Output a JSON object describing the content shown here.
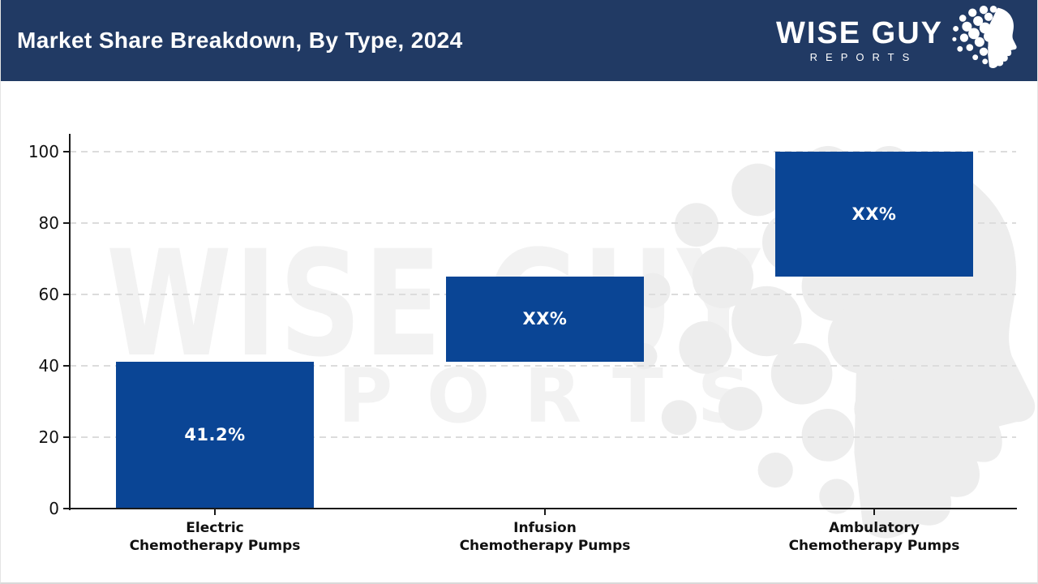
{
  "header": {
    "title": "Market Share Breakdown, By Type, 2024",
    "bg_color": "#213a64",
    "logo": {
      "line1": "WISE GUY",
      "line2": "REPORTS",
      "icon": "dotted-face-profile-icon"
    }
  },
  "watermark": {
    "line1": "WISE GUY",
    "line2": "REPORTS",
    "icon": "dotted-face-profile-icon"
  },
  "chart_data": {
    "type": "bar",
    "subtype": "floating-segment-waterfall",
    "title": "Market Share Breakdown, By Type, 2024",
    "categories": [
      [
        "Electric",
        "Chemotherapy Pumps"
      ],
      [
        "Infusion",
        "Chemotherapy Pumps"
      ],
      [
        "Ambulatory",
        "Chemotherapy Pumps"
      ]
    ],
    "bars": [
      {
        "start": 0,
        "end": 41.2,
        "label": "41.2%"
      },
      {
        "start": 41.2,
        "end": 65,
        "label": "XX%"
      },
      {
        "start": 65,
        "end": 100,
        "label": "XX%"
      }
    ],
    "y_ticks": [
      0,
      20,
      40,
      60,
      80,
      100
    ],
    "ylim": [
      0,
      105
    ],
    "xlabel": "",
    "ylabel": "",
    "legend": "none",
    "grid": "horizontal-dashed",
    "bar_color": "#0a4595",
    "bar_label_color": "#ffffff",
    "axis_color": "#1a1a1a",
    "gridline_color": "#dcdcdc"
  }
}
